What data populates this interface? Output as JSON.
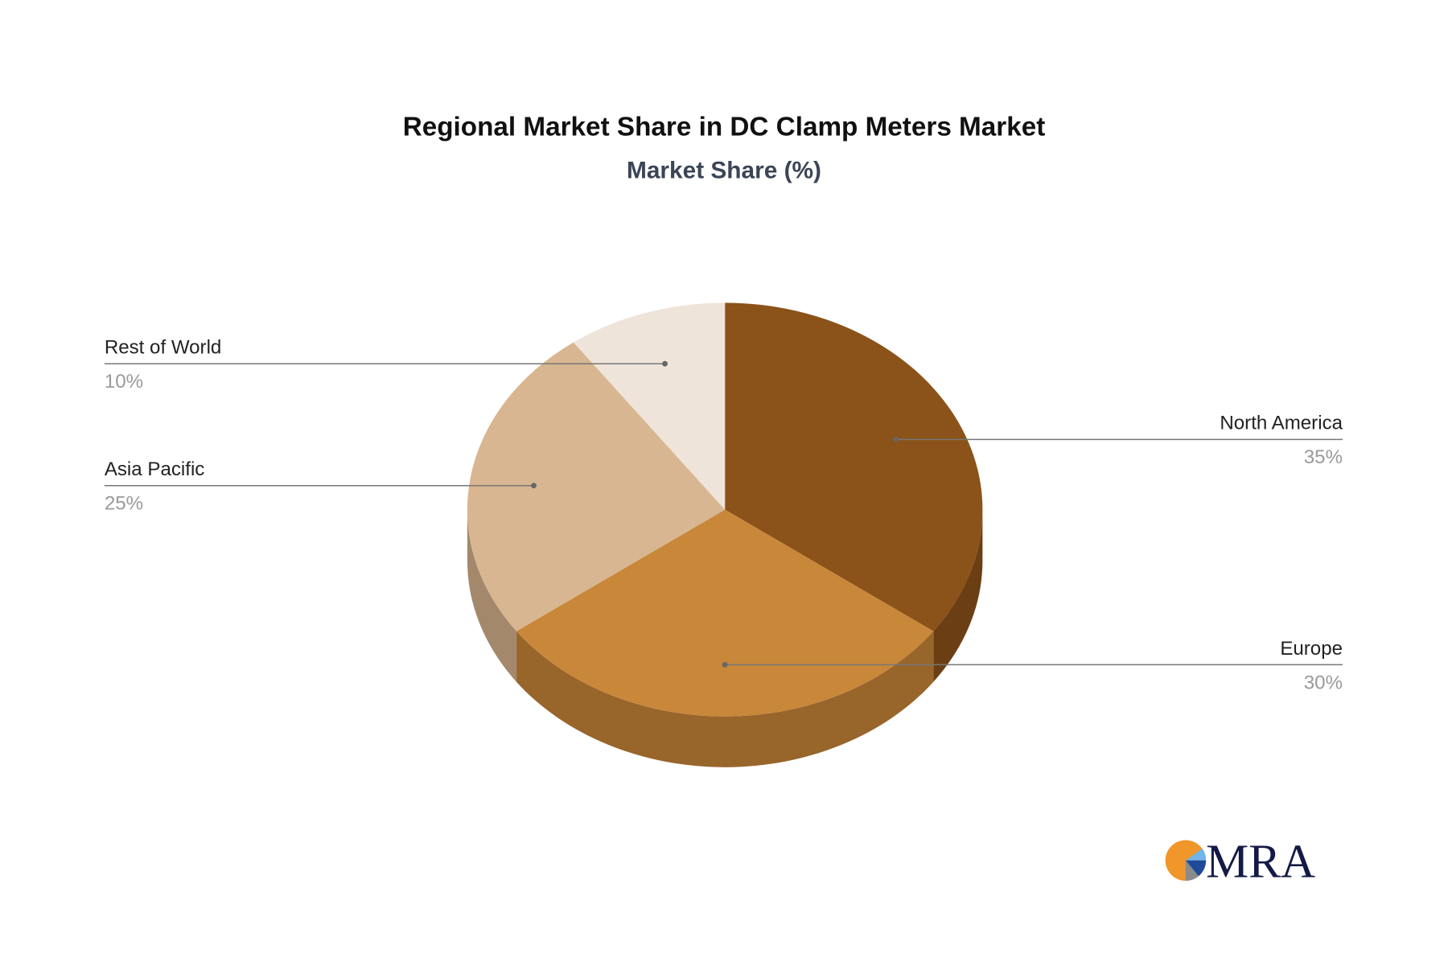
{
  "chart_data": {
    "type": "pie",
    "style": "3d",
    "title": "Regional Market Share in DC Clamp Meters Market",
    "subtitle": "Market Share (%)",
    "slices": [
      {
        "label": "North America",
        "value": 35,
        "display": "35%",
        "color": "#8B5319",
        "side_color": "#6B3F13"
      },
      {
        "label": "Europe",
        "value": 30,
        "display": "30%",
        "color": "#C9873A",
        "side_color": "#98652B"
      },
      {
        "label": "Asia Pacific",
        "value": 25,
        "display": "25%",
        "color": "#D8B691",
        "side_color": "#A3886C"
      },
      {
        "label": "Rest of World",
        "value": 10,
        "display": "10%",
        "color": "#EEE4DA",
        "side_color": "#BDB3A9"
      }
    ]
  },
  "logo": {
    "text": "MRA",
    "colors": {
      "orange": "#F0962A",
      "navy": "#141A46",
      "light_blue": "#6FB5E8",
      "blue": "#1E4A9A",
      "gray": "#8A8A8A"
    }
  }
}
